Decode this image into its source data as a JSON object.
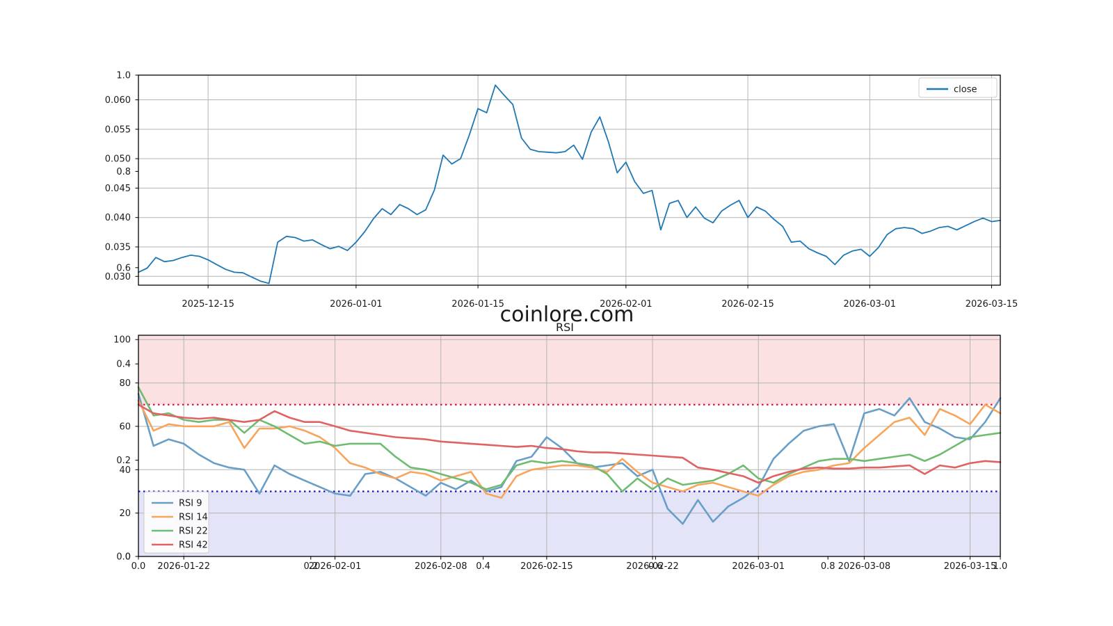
{
  "watermark": "coinlore.com",
  "chart_data": [
    {
      "type": "line",
      "name": "price-chart",
      "title": "",
      "legend": [
        {
          "label": "close",
          "color": "#1f77b4"
        }
      ],
      "legend_position": "upper right",
      "grid": true,
      "x_start_date": "2025-12-07",
      "x_ticks": [
        {
          "label": "2025-12-15",
          "day": 8
        },
        {
          "label": "2026-01-01",
          "day": 25
        },
        {
          "label": "2026-01-15",
          "day": 39
        },
        {
          "label": "2026-02-01",
          "day": 56
        },
        {
          "label": "2026-02-15",
          "day": 70
        },
        {
          "label": "2026-03-01",
          "day": 84
        },
        {
          "label": "2026-03-15",
          "day": 98
        }
      ],
      "y_ticks": [
        {
          "label": "0.030",
          "value": 0.03
        },
        {
          "label": "0.035",
          "value": 0.035
        },
        {
          "label": "0.040",
          "value": 0.04
        },
        {
          "label": "0.045",
          "value": 0.045
        },
        {
          "label": "0.050",
          "value": 0.05
        },
        {
          "label": "0.055",
          "value": 0.055
        },
        {
          "label": "0.060",
          "value": 0.06
        }
      ],
      "ylim": [
        0.0285,
        0.0642
      ],
      "series": [
        {
          "name": "close",
          "color": "#1f77b4",
          "width": 1.8,
          "values": [
            0.0307,
            0.0314,
            0.0332,
            0.0325,
            0.0327,
            0.0332,
            0.0336,
            0.0334,
            0.0328,
            0.032,
            0.0312,
            0.0307,
            0.0306,
            0.0299,
            0.0292,
            0.0288,
            0.0358,
            0.0368,
            0.0366,
            0.036,
            0.0362,
            0.0354,
            0.0347,
            0.0351,
            0.0344,
            0.0358,
            0.0376,
            0.0398,
            0.0415,
            0.0405,
            0.0422,
            0.0415,
            0.0405,
            0.0413,
            0.0447,
            0.0506,
            0.0491,
            0.05,
            0.054,
            0.0585,
            0.0578,
            0.0625,
            0.0608,
            0.0592,
            0.0535,
            0.0516,
            0.0512,
            0.0511,
            0.051,
            0.0512,
            0.0523,
            0.0499,
            0.0545,
            0.0571,
            0.0528,
            0.0476,
            0.0494,
            0.0461,
            0.0441,
            0.0446,
            0.0379,
            0.0424,
            0.0429,
            0.04,
            0.0418,
            0.0399,
            0.0391,
            0.0411,
            0.0421,
            0.0429,
            0.04,
            0.0418,
            0.0411,
            0.0397,
            0.0385,
            0.0358,
            0.036,
            0.0347,
            0.034,
            0.0334,
            0.032,
            0.0336,
            0.0343,
            0.0346,
            0.0334,
            0.0349,
            0.0371,
            0.0381,
            0.0383,
            0.0381,
            0.0373,
            0.0377,
            0.0383,
            0.0385,
            0.0379,
            0.0386,
            0.0393,
            0.0399,
            0.0393,
            0.0395
          ]
        }
      ]
    },
    {
      "type": "line",
      "name": "rsi-chart",
      "title": "RSI",
      "legend": [
        {
          "label": "RSI 9",
          "color": "#699fc6"
        },
        {
          "label": "RSI 14",
          "color": "#f9a45b"
        },
        {
          "label": "RSI 22",
          "color": "#6fbb70"
        },
        {
          "label": "RSI 42",
          "color": "#e06262"
        }
      ],
      "legend_position": "lower left",
      "grid": true,
      "x_start_date": "2026-01-19",
      "x_ticks": [
        {
          "label": "2026-01-22",
          "day": 3
        },
        {
          "label": "2026-02-01",
          "day": 13
        },
        {
          "label": "2026-02-08",
          "day": 20
        },
        {
          "label": "2026-02-15",
          "day": 27
        },
        {
          "label": "2026-02-22",
          "day": 34
        },
        {
          "label": "2026-03-01",
          "day": 41
        },
        {
          "label": "2026-03-08",
          "day": 48
        },
        {
          "label": "2026-03-15",
          "day": 55
        }
      ],
      "y_ticks": [
        {
          "label": "0",
          "value": 0
        },
        {
          "label": "20",
          "value": 20
        },
        {
          "label": "40",
          "value": 40
        },
        {
          "label": "60",
          "value": 60
        },
        {
          "label": "80",
          "value": 80
        },
        {
          "label": "100",
          "value": 100
        }
      ],
      "ylim": [
        0,
        102
      ],
      "overbought_level": 70,
      "oversold_level": 30,
      "overbought_band_color": "#fce1e3",
      "oversold_band_color": "#e4e4f8",
      "overbought_line_color": "#e0103c",
      "oversold_line_color": "#1a10c8",
      "series": [
        {
          "name": "RSI 9",
          "color": "#699fc6",
          "width": 2.6,
          "values": [
            75,
            51,
            54,
            52,
            47,
            43,
            41,
            40,
            29,
            42,
            38,
            35,
            32,
            29,
            28,
            38,
            39,
            36,
            32,
            28,
            34,
            31,
            35,
            30,
            32,
            44,
            46,
            55,
            50,
            43,
            41,
            42,
            43,
            37,
            40,
            22,
            15,
            26,
            16,
            23,
            27,
            32,
            45,
            52,
            58,
            60,
            61,
            44,
            66,
            68,
            65,
            73,
            62,
            59,
            55,
            54,
            62,
            73
          ]
        },
        {
          "name": "RSI 14",
          "color": "#f9a45b",
          "width": 2.6,
          "values": [
            72,
            58,
            61,
            60,
            60,
            60,
            62,
            50,
            59,
            59,
            60,
            58,
            55,
            50,
            43,
            41,
            38,
            36,
            39,
            38,
            35,
            37,
            39,
            29,
            27,
            37,
            40,
            41,
            42,
            42,
            41,
            39,
            45,
            39,
            34,
            32,
            30,
            33,
            34,
            32,
            30,
            28,
            33,
            37,
            39,
            40,
            42,
            43,
            50,
            56,
            62,
            64,
            56,
            68,
            65,
            61,
            70,
            66
          ]
        },
        {
          "name": "RSI 22",
          "color": "#6fbb70",
          "width": 2.6,
          "values": [
            78,
            65,
            66,
            63,
            62,
            63,
            63,
            57,
            63,
            60,
            56,
            52,
            53,
            51,
            52,
            52,
            52,
            46,
            41,
            40,
            38,
            36,
            34,
            31,
            33,
            42,
            44,
            43,
            44,
            43,
            42,
            38,
            30,
            36,
            31,
            36,
            33,
            34,
            35,
            38,
            42,
            36,
            34,
            38,
            41,
            44,
            45,
            45,
            44,
            45,
            46,
            47,
            44,
            47,
            51,
            55,
            56,
            57
          ]
        },
        {
          "name": "RSI 42",
          "color": "#e06262",
          "width": 2.6,
          "values": [
            70,
            66,
            65,
            64,
            63.5,
            64,
            63,
            62,
            63,
            67,
            64,
            62,
            62,
            60,
            58,
            57,
            56,
            55,
            54.5,
            54,
            53,
            52.5,
            52,
            51.5,
            51,
            50.5,
            51,
            50,
            49.5,
            48.5,
            48,
            48,
            47.5,
            47,
            46.5,
            46,
            45.5,
            41,
            40,
            38.5,
            37,
            34,
            37,
            39,
            40.5,
            41,
            40.5,
            40.5,
            41,
            41,
            41.5,
            42,
            38,
            42,
            41,
            43,
            44,
            43.5
          ]
        }
      ]
    }
  ],
  "overlay_axis": {
    "y_labels": [
      "1.0",
      "0.8",
      "0.6",
      "0.4",
      "0.2",
      "0.0"
    ],
    "x_labels": [
      "0.0",
      "0.2",
      "0.4",
      "0.6",
      "0.8",
      "1.0"
    ]
  },
  "style": {
    "grid_color": "#b4b4b4",
    "spine_color": "#000000",
    "text_color": "#1a1a1a",
    "watermark_color": "#999999",
    "legend_border": "#cccccc",
    "legend_bg": "#ffffff"
  }
}
